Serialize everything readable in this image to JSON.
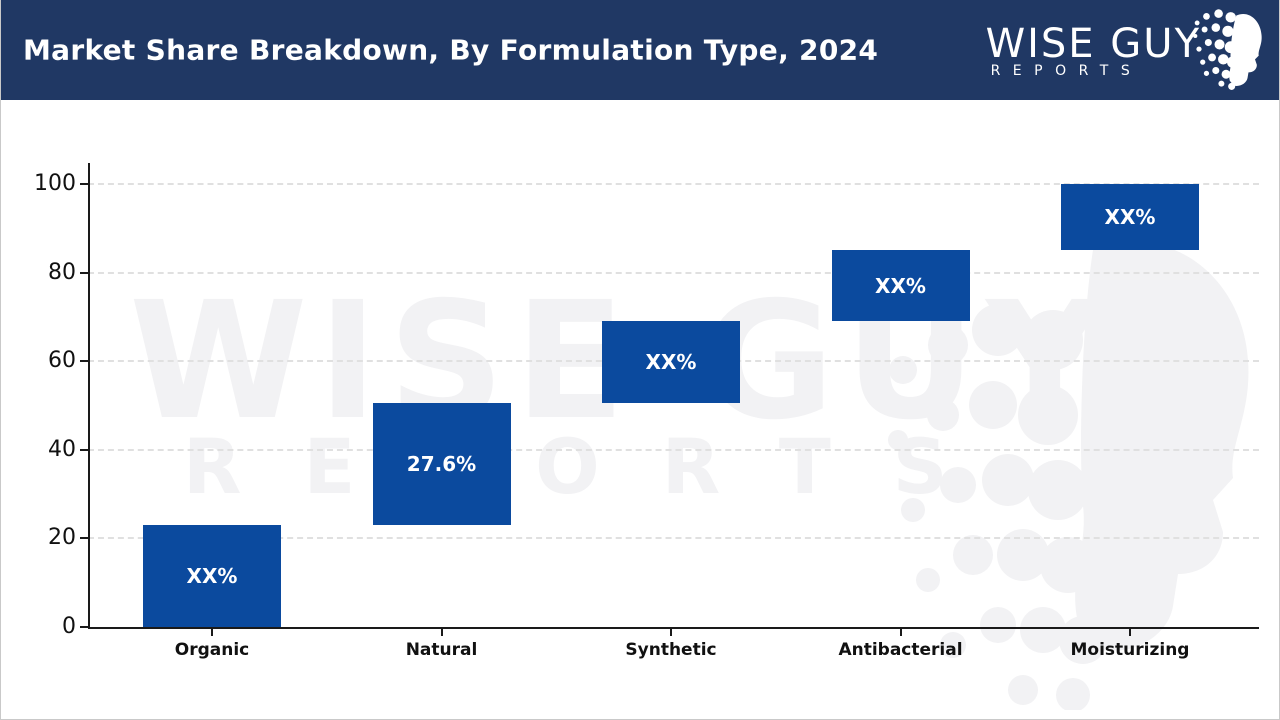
{
  "header": {
    "title": "Market Share Breakdown, By Formulation Type, 2024",
    "logo": {
      "primary": "WISE GUY",
      "secondary": "REPORTS"
    }
  },
  "watermark": {
    "primary": "WISE GUY",
    "secondary": "REPORTS"
  },
  "chart_data": {
    "type": "bar",
    "variant": "waterfall",
    "title": "Market Share Breakdown, By Formulation Type, 2024",
    "categories": [
      "Organic",
      "Natural",
      "Synthetic",
      "Antibacterial",
      "Moisturizing"
    ],
    "segments": [
      {
        "category": "Organic",
        "start": 0,
        "end": 23,
        "label": "XX%"
      },
      {
        "category": "Natural",
        "start": 23,
        "end": 50.6,
        "label": "27.6%"
      },
      {
        "category": "Synthetic",
        "start": 50.6,
        "end": 69,
        "label": "XX%"
      },
      {
        "category": "Antibacterial",
        "start": 69,
        "end": 85,
        "label": "XX%"
      },
      {
        "category": "Moisturizing",
        "start": 85,
        "end": 100,
        "label": "XX%"
      }
    ],
    "ylim": [
      0,
      100
    ],
    "yticks": [
      0,
      20,
      40,
      60,
      80,
      100
    ],
    "xlabel": "",
    "ylabel": "",
    "grid": "horizontal-dashed",
    "legend": "none",
    "bar_color": "#0b4a9e",
    "bar_label_color": "#ffffff"
  },
  "colors": {
    "header_bg": "#203864",
    "bar": "#0b4a9e",
    "axis": "#1a1a1a",
    "grid": "#e0e0e0",
    "watermark": "#f2f2f4",
    "page_border": "#c9c9c9"
  }
}
